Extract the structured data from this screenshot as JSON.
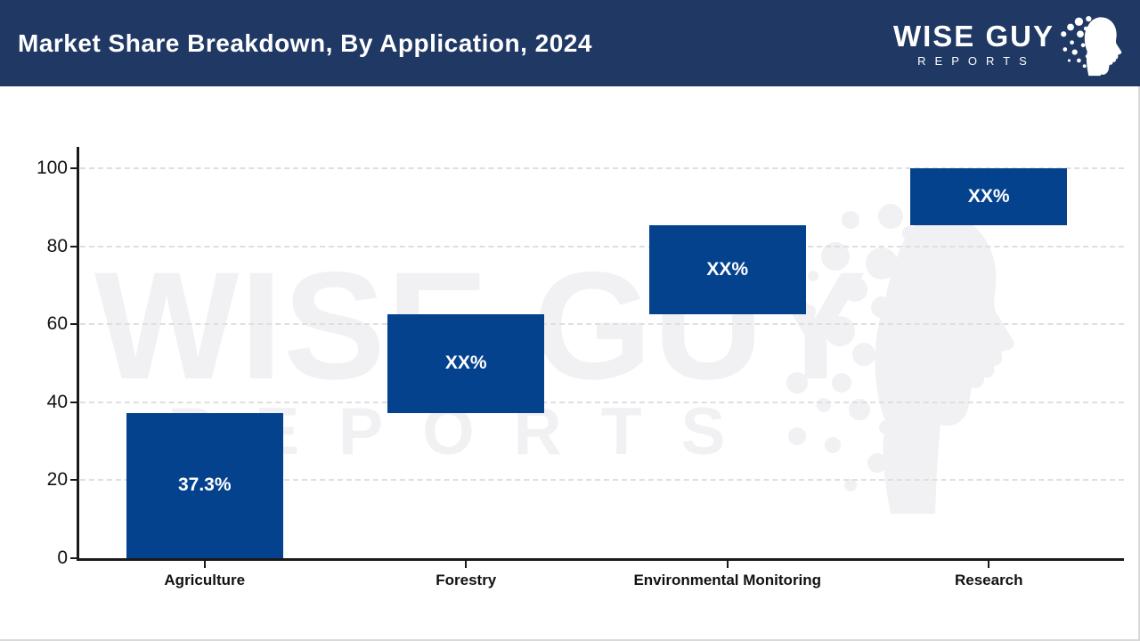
{
  "header": {
    "title": "Market Share Breakdown, By Application, 2024",
    "logo": {
      "line1": "WISE GUY",
      "line2": "REPORTS"
    }
  },
  "watermark": {
    "line1": "WISE GUY",
    "line2": "REPORTS"
  },
  "colors": {
    "header_bg": "#1f3864",
    "bar": "#05428e",
    "watermark": "#f1f1f4",
    "grid": "#dfdfdf",
    "axis": "#1a1a1a",
    "bar_label": "#ffffff"
  },
  "chart_data": {
    "type": "bar",
    "subtype": "waterfall",
    "title": "Market Share Breakdown, By Application, 2024",
    "categories": [
      "Agriculture",
      "Forestry",
      "Environmental Monitoring",
      "Research"
    ],
    "segments": [
      {
        "category": "Agriculture",
        "start": 0,
        "end": 37.3,
        "label": "37.3%"
      },
      {
        "category": "Forestry",
        "start": 37.3,
        "end": 62.5,
        "label": "XX%"
      },
      {
        "category": "Environmental Monitoring",
        "start": 62.5,
        "end": 85.5,
        "label": "XX%"
      },
      {
        "category": "Research",
        "start": 85.5,
        "end": 100,
        "label": "XX%"
      }
    ],
    "xlabel": "",
    "ylabel": "",
    "ylim": [
      0,
      100
    ],
    "yticks": [
      0,
      20,
      40,
      60,
      80,
      100
    ],
    "grid": "horizontal-dashed",
    "legend": "none"
  }
}
